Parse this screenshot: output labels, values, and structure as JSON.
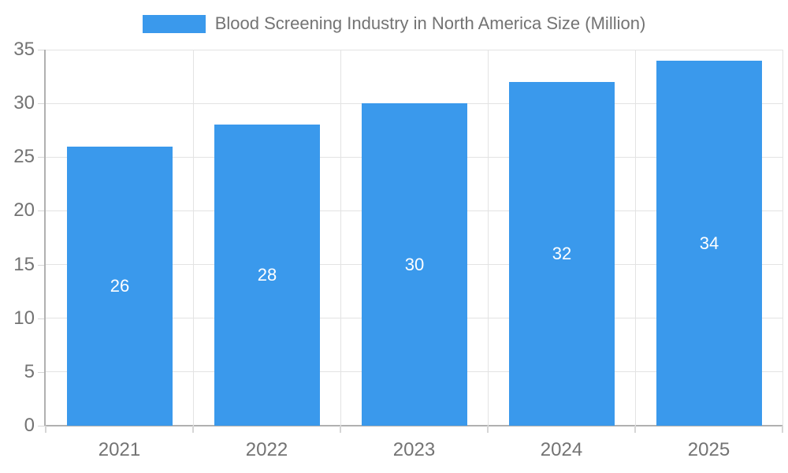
{
  "chart_data": {
    "type": "bar",
    "title": "Blood Screening Industry in North America Size (Million)",
    "categories": [
      "2021",
      "2022",
      "2023",
      "2024",
      "2025"
    ],
    "values": [
      26,
      28,
      30,
      32,
      34
    ],
    "value_labels": [
      "26",
      "28",
      "30",
      "32",
      "34"
    ],
    "value_labels_shown": true,
    "xlabel": "",
    "ylabel": "",
    "ylim": [
      0,
      35
    ],
    "yticks": [
      0,
      5,
      10,
      15,
      20,
      25,
      30,
      35
    ],
    "grid": true,
    "legend_position": "top-center",
    "colors": {
      "bar": "#3A99EC",
      "bar_value_text": "#FFFFFF",
      "axis_text": "#737373",
      "legend_text": "#737373",
      "gridline": "#E3E3E3",
      "axis_line": "#B0B0B0",
      "tick": "#D6D6D6",
      "background": "#FFFFFF"
    }
  }
}
